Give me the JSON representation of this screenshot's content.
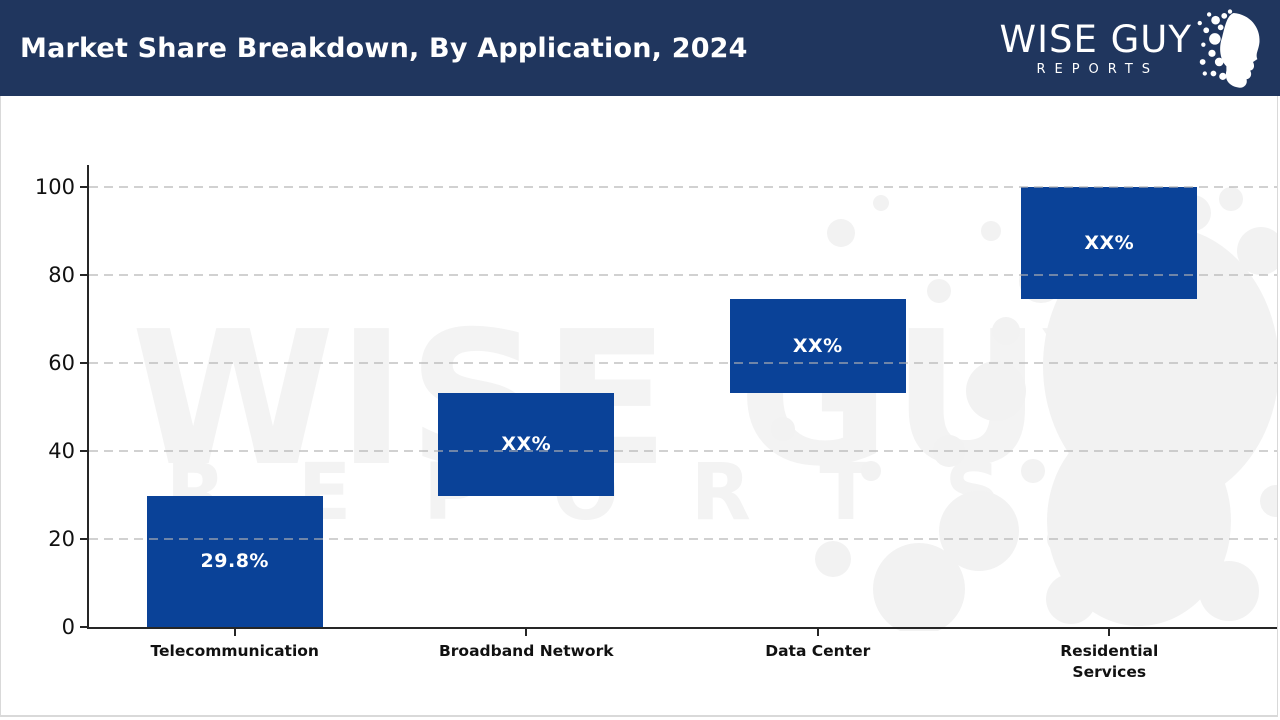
{
  "header": {
    "title": "Market Share Breakdown, By Application, 2024",
    "bg_color": "#20365e",
    "logo": {
      "line1": "WISE GUY",
      "line2": "REPORTS"
    }
  },
  "watermark": {
    "line1": "WISE GUY",
    "line2": "REPORTS"
  },
  "chart_data": {
    "type": "bar",
    "subtype": "waterfall",
    "title": "Market Share Breakdown, By Application, 2024",
    "xlabel": "",
    "ylabel": "",
    "categories": [
      "Telecommunication",
      "Broadband Network",
      "Data Center",
      "Residential Services"
    ],
    "tick_labels": [
      "Telecommunication",
      "Broadband Network",
      "Data Center",
      "Residential\nServices"
    ],
    "segments": [
      {
        "category": "Telecommunication",
        "start": 0,
        "end": 29.8,
        "label": "29.8%"
      },
      {
        "category": "Broadband Network",
        "start": 29.8,
        "end": 53.2,
        "label": "XX%"
      },
      {
        "category": "Data Center",
        "start": 53.2,
        "end": 74.5,
        "label": "XX%"
      },
      {
        "category": "Residential Services",
        "start": 74.5,
        "end": 100,
        "label": "XX%"
      }
    ],
    "yticks": [
      0,
      20,
      40,
      60,
      80,
      100
    ],
    "ylim": [
      0,
      105
    ],
    "grid": "dashed-horizontal",
    "legend": "none",
    "bar_color": "#0a4298",
    "bar_label_color": "#ffffff"
  }
}
